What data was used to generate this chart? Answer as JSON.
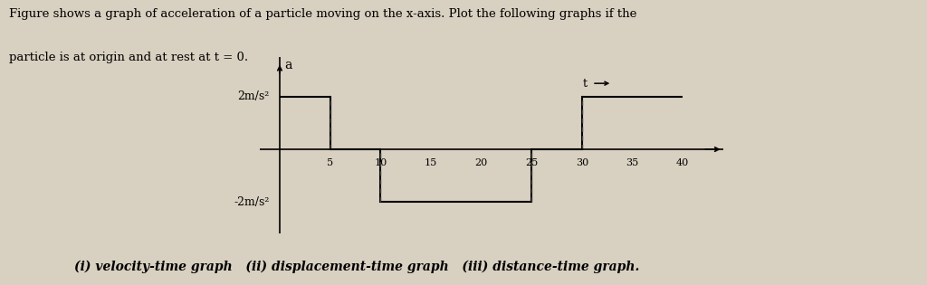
{
  "segments": [
    {
      "t_start": 0,
      "t_end": 5,
      "a": 2
    },
    {
      "t_start": 5,
      "t_end": 10,
      "a": 0
    },
    {
      "t_start": 10,
      "t_end": 25,
      "a": -2
    },
    {
      "t_start": 25,
      "t_end": 30,
      "a": 0
    },
    {
      "t_start": 30,
      "t_end": 40,
      "a": 2
    }
  ],
  "t_ticks": [
    5,
    10,
    15,
    20,
    25,
    30,
    35,
    40
  ],
  "ylabel_unit": "2m/s²",
  "ylabel_neg_unit": "-2m/s²",
  "ylabel": "a",
  "xlabel": "t",
  "bottom_text": "(i) velocity-time graph   (ii) displacement-time graph   (iii) distance-time graph.",
  "top_text_line1": "Figure shows a graph of acceleration of a particle moving on the x-axis. Plot the following graphs if the",
  "top_text_line2": "particle is at origin and at rest at t = 0.",
  "bg_color": "#d8d0c0",
  "line_color": "#000000",
  "dashed_color": "#444444",
  "figsize": [
    10.24,
    3.15
  ],
  "dpi": 100,
  "ylim": [
    -3.2,
    3.5
  ],
  "xlim": [
    -2,
    44
  ]
}
